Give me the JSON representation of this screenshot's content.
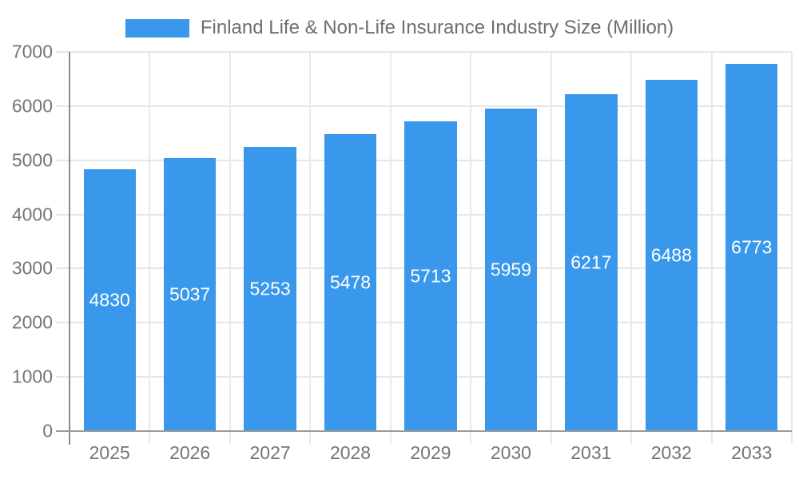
{
  "chart_data": {
    "type": "bar",
    "title": "Finland Life & Non-Life Insurance Industry Size (Million)",
    "legend_position": "top",
    "categories": [
      "2025",
      "2026",
      "2027",
      "2028",
      "2029",
      "2030",
      "2031",
      "2032",
      "2033"
    ],
    "series": [
      {
        "name": "Finland Life & Non-Life Insurance Industry Size (Million)",
        "values": [
          4830,
          5037,
          5253,
          5478,
          5713,
          5959,
          6217,
          6488,
          6773
        ]
      }
    ],
    "xlabel": "",
    "ylabel": "",
    "ylim": [
      0,
      7000
    ],
    "yticks": [
      0,
      1000,
      2000,
      3000,
      4000,
      5000,
      6000,
      7000
    ],
    "grid": true,
    "colors": {
      "bar": "#3998EC",
      "bar_value_text": "#ffffff",
      "axis_text": "#757575",
      "legend_text": "#6e6e6e",
      "gridline": "#e6e6e6",
      "axis_line": "#8a8a8a"
    }
  }
}
